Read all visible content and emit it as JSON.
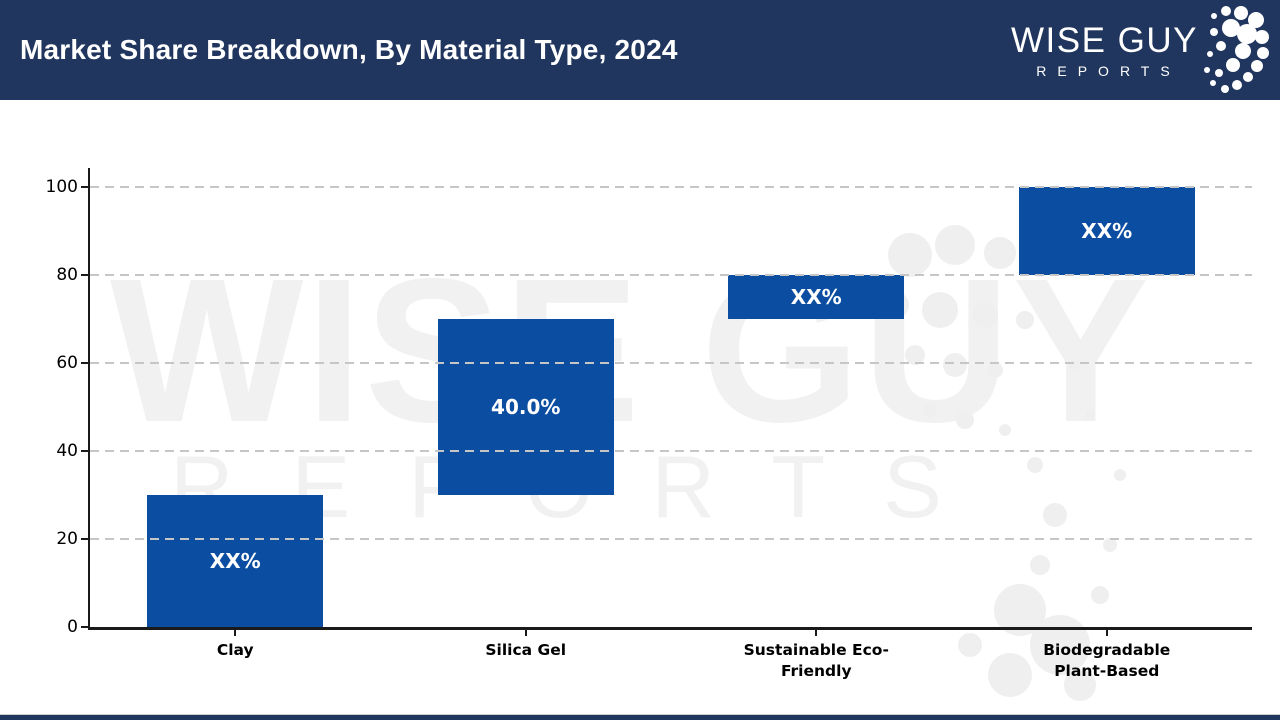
{
  "header": {
    "title": "Market Share Breakdown, By Material Type, 2024",
    "logo": {
      "line1": "WISE GUY",
      "line2": "REPORTS"
    },
    "bg_color": "#21365f"
  },
  "watermark": {
    "line1": "WISE GUY",
    "line2": "REPORTS"
  },
  "chart_data": {
    "type": "bar",
    "subtype": "waterfall",
    "title": "Market Share Breakdown, By Material Type, 2024",
    "categories": [
      "Clay",
      "Silica Gel",
      "Sustainable Eco-Friendly",
      "Biodegradable Plant-Based"
    ],
    "segments": [
      {
        "category": "Clay",
        "start": 0,
        "end": 30,
        "label": "XX%"
      },
      {
        "category": "Silica Gel",
        "start": 30,
        "end": 70,
        "label": "40.0%"
      },
      {
        "category": "Sustainable Eco-Friendly",
        "start": 70,
        "end": 80,
        "label": "XX%"
      },
      {
        "category": "Biodegradable Plant-Based",
        "start": 80,
        "end": 100,
        "label": "XX%"
      }
    ],
    "yticks": [
      0,
      20,
      40,
      60,
      80,
      100
    ],
    "ylim": [
      0,
      104
    ],
    "xlabel": "",
    "ylabel": "",
    "grid": "dashed horizontal",
    "legend": "none",
    "bar_color": "#0b4da1",
    "label_color": "#ffffff"
  }
}
